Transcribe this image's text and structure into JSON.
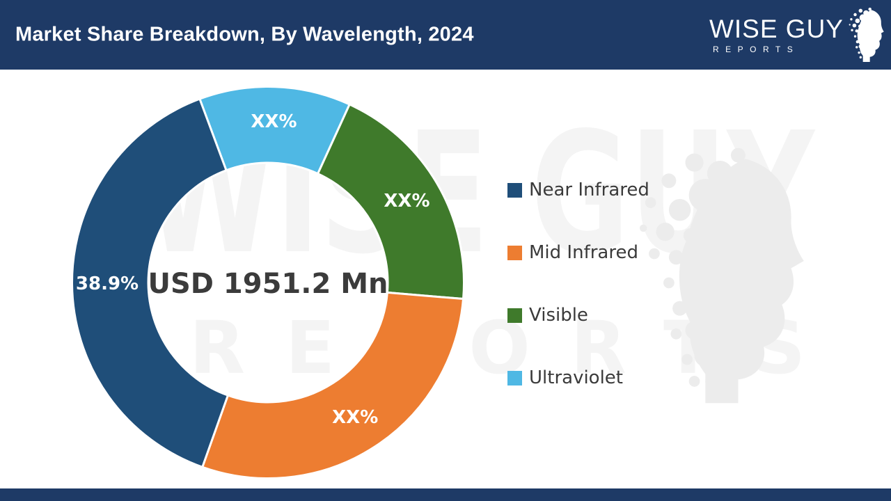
{
  "header": {
    "title": "Market Share Breakdown, By Wavelength, 2024",
    "bg_color": "#1e3a66",
    "logo": {
      "line1": "WISE GUY",
      "line2": "REPORTS"
    }
  },
  "chart_data": {
    "type": "pie",
    "donut": true,
    "title": "Market Share Breakdown, By Wavelength, 2024",
    "center_label": "USD 1951.2 Mn",
    "start_angle_deg": -20.4,
    "legend_position": "right",
    "segments": [
      {
        "name": "Ultraviolet",
        "display_label": "XX%",
        "value_pct": 12.5,
        "color": "#4fb8e4"
      },
      {
        "name": "Visible",
        "display_label": "XX%",
        "value_pct": 19.5,
        "color": "#3f7a2b"
      },
      {
        "name": "Mid Infrared",
        "display_label": "XX%",
        "value_pct": 29.1,
        "color": "#ed7d31"
      },
      {
        "name": "Near Infrared",
        "display_label": "38.9%",
        "value_pct": 38.9,
        "color": "#1f4e79"
      }
    ]
  },
  "legend": {
    "items": [
      {
        "label": "Near Infrared",
        "color": "#1f4e79"
      },
      {
        "label": "Mid Infrared",
        "color": "#ed7d31"
      },
      {
        "label": "Visible",
        "color": "#3f7a2b"
      },
      {
        "label": "Ultraviolet",
        "color": "#4fb8e4"
      }
    ]
  },
  "watermark": {
    "line1": "WISE GUY",
    "line2": "REPORTS"
  },
  "colors": {
    "header_bg": "#1e3a66",
    "footer_bg": "#1e3a66",
    "watermark": "#f4f4f4"
  }
}
